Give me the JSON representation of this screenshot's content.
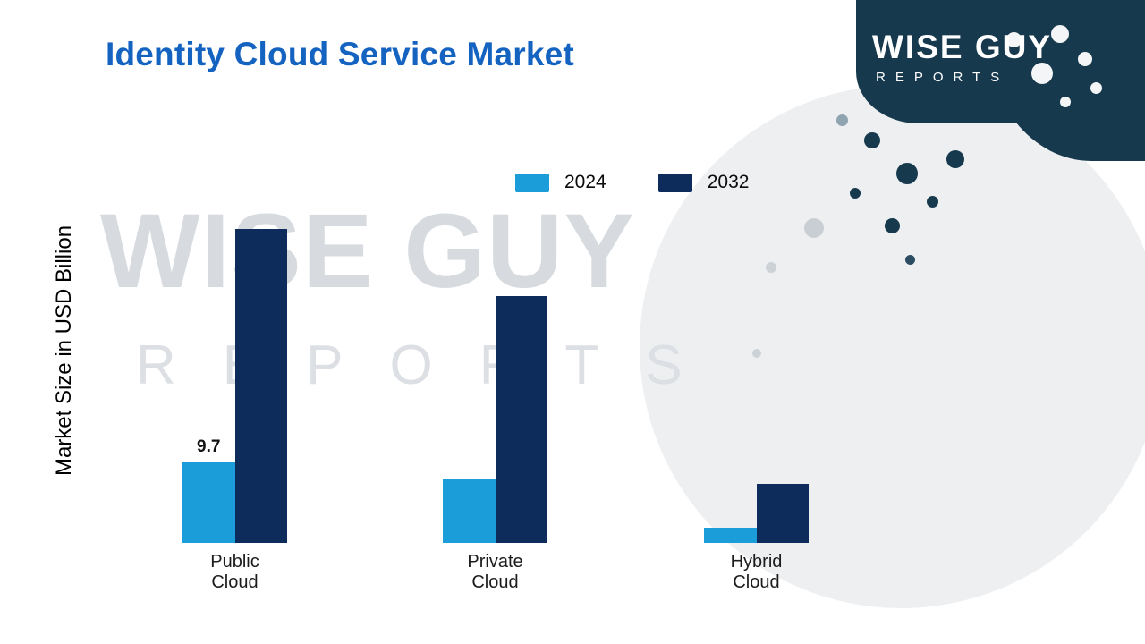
{
  "page": {
    "title": "Identity Cloud Service Market"
  },
  "logo": {
    "line1": "WISE GUY",
    "line2": "REPORTS"
  },
  "watermark": {
    "line1": "WISE GUY",
    "line2": "REPORTS"
  },
  "colors": {
    "title_blue": "#1563c0",
    "series_2024": "#1b9dd9",
    "series_2032": "#0d2b5b",
    "corner_navy": "#16394e",
    "background_gray": "#edeff1",
    "watermark_gray": "#d7dbdf"
  },
  "chart_data": {
    "type": "bar",
    "title": "Identity Cloud Service Market",
    "categories": [
      "Public Cloud",
      "Private Cloud",
      "Hybrid Cloud"
    ],
    "series": [
      {
        "name": "2024",
        "color": "#1b9dd9",
        "values": [
          9.7,
          7.5,
          1.8
        ],
        "labels": [
          "9.7",
          "",
          ""
        ]
      },
      {
        "name": "2032",
        "color": "#0d2b5b",
        "values": [
          37.2,
          29.3,
          7.0
        ],
        "labels": [
          "",
          "",
          ""
        ]
      }
    ],
    "xlabel": "",
    "ylabel": "Market Size in USD Billion",
    "ylim": [
      0,
      40
    ],
    "grid": false,
    "legend_position": "top"
  }
}
